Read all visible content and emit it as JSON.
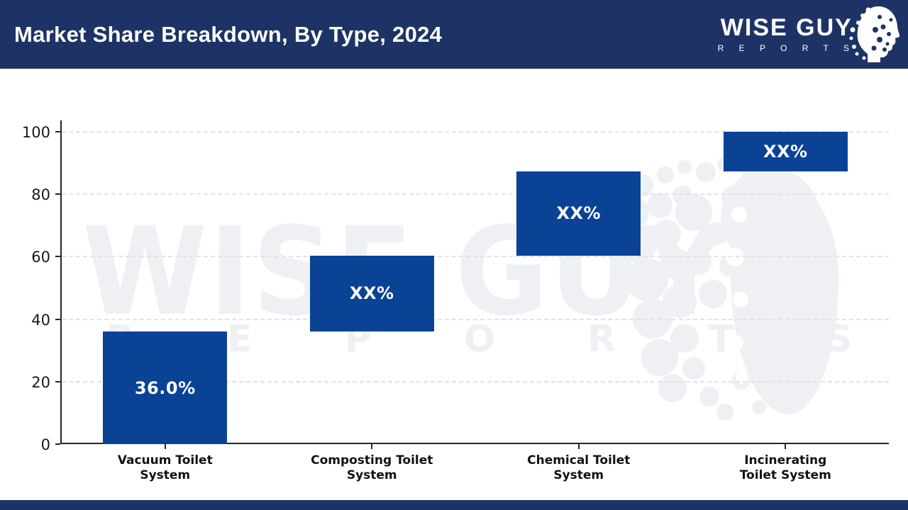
{
  "header": {
    "title": "Market Share Breakdown, By Type, 2024",
    "logo": {
      "line1": "WISE GUY",
      "line2": "R E P O R T S"
    }
  },
  "watermark": {
    "line1": "WISE GUY",
    "line2": "R E P O R T S"
  },
  "colors": {
    "header_bg": "#1e3365",
    "bar": "#0a4296",
    "bar_label": "#ffffff",
    "axis": "#262626",
    "gridline": "#e2e2e2",
    "watermark": "#eff0f3",
    "footer_bg": "#1e3365"
  },
  "chart_data": {
    "type": "bar",
    "subtype": "waterfall",
    "title": "Market Share Breakdown, By Type, 2024",
    "categories": [
      "Vacuum Toilet\nSystem",
      "Composting Toilet\nSystem",
      "Chemical Toilet\nSystem",
      "Incinerating\nToilet System"
    ],
    "segments": [
      {
        "category": "Vacuum Toilet System",
        "start": 0,
        "end": 36,
        "label": "36.0%"
      },
      {
        "category": "Composting Toilet System",
        "start": 36,
        "end": 60.4,
        "label": "XX%"
      },
      {
        "category": "Chemical Toilet System",
        "start": 60.4,
        "end": 87.3,
        "label": "XX%"
      },
      {
        "category": "Incinerating Toilet System",
        "start": 87.3,
        "end": 100,
        "label": "XX%"
      }
    ],
    "yticks": [
      0,
      20,
      40,
      60,
      80,
      100
    ],
    "ylim": [
      0,
      103.6
    ],
    "xlabel": "",
    "ylabel": "",
    "grid": "horizontal-dashed",
    "legend": "none"
  }
}
